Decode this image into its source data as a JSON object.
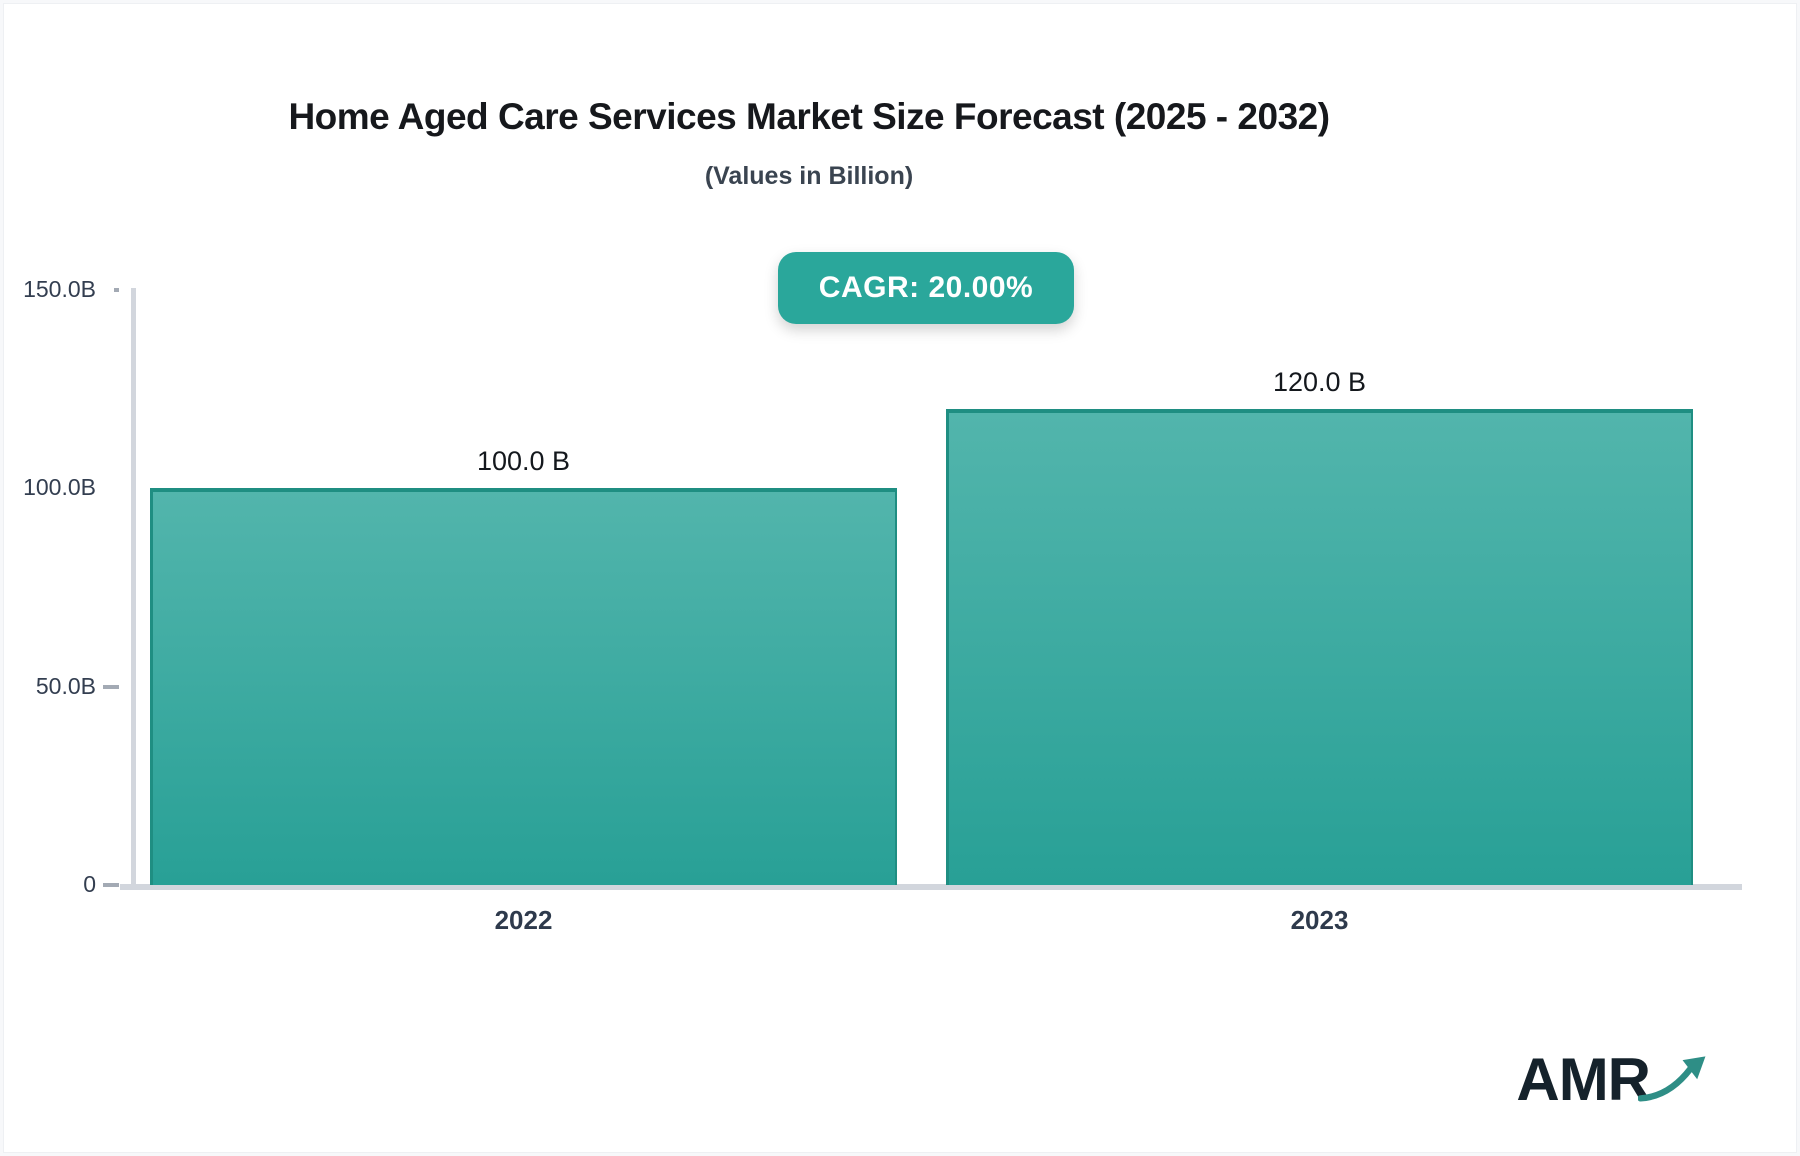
{
  "header": {
    "title": "Home Aged Care Services Market Size Forecast (2025 - 2032)",
    "subtitle": "(Values in Billion)"
  },
  "cagr_badge": {
    "label": "CAGR: 20.00%",
    "background": "#2aa79b",
    "text_color": "#ffffff"
  },
  "chart_data": {
    "type": "bar",
    "title": "Home Aged Care Services Market Size Forecast (2025 - 2032)",
    "subtitle": "(Values in Billion)",
    "cagr": "20.00%",
    "unit": "Billion",
    "categories": [
      "2022",
      "2023"
    ],
    "values": [
      100.0,
      120.0
    ],
    "value_labels": [
      "100.0 B",
      "120.0 B"
    ],
    "xlabel": "",
    "ylabel": "",
    "ylim": [
      0,
      150
    ],
    "y_ticks": [
      {
        "label": "150.0B",
        "value": 150,
        "tick": "dot"
      },
      {
        "label": "100.0B",
        "value": 100,
        "tick": "none"
      },
      {
        "label": "50.0B",
        "value": 50,
        "tick": "dash"
      },
      {
        "label": "0",
        "value": 0,
        "tick": "dash"
      }
    ],
    "grid": false,
    "legend": false,
    "colors": {
      "bar_top": "#52b5ac",
      "bar_bottom": "#28a096",
      "bar_border": "#1f8e82",
      "axis_line": "#d2d6dd",
      "tick": "#a3aab4",
      "tick_label": "#333e50",
      "value_label": "#14181d",
      "category_label": "#2e3a4c"
    }
  },
  "logo": {
    "text": "AMR",
    "text_color": "#15222b",
    "arrow_color": "#2e8e86"
  }
}
